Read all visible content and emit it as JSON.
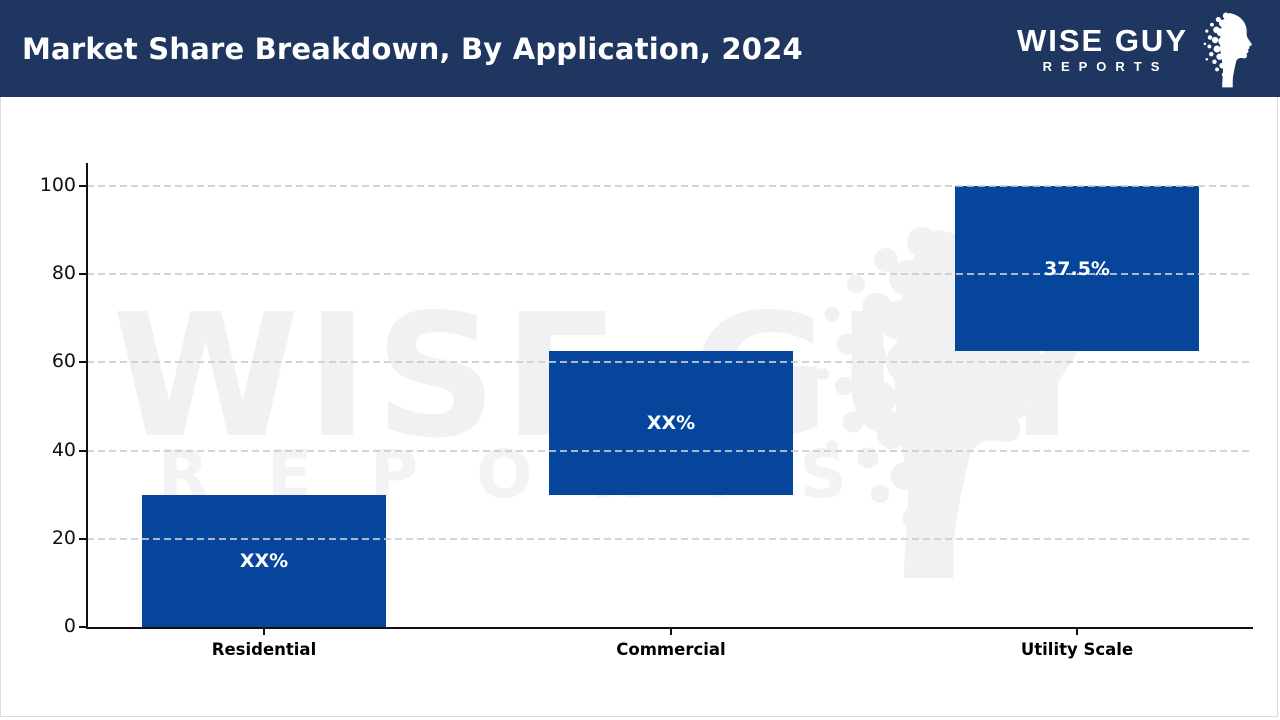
{
  "header": {
    "title": "Market Share Breakdown, By Application, 2024",
    "bg_color": "#1F3661",
    "text_color": "#FFFFFF",
    "logo": {
      "wordmark": "WISE GUY",
      "subtitle": "REPORTS",
      "icon": "wiseguy-head-icon"
    }
  },
  "watermark": {
    "wordmark": "WISE GUY",
    "subtitle": "REPORTS",
    "icon": "wiseguy-head-icon",
    "color": "#F1F1F3"
  },
  "chart_data": {
    "type": "bar",
    "variant": "floating-segment-waterfall",
    "title": "Market Share Breakdown, By Application, 2024",
    "categories": [
      "Residential",
      "Commercial",
      "Utility Scale"
    ],
    "bars": [
      {
        "category": "Residential",
        "from": 0,
        "to": 30,
        "size": 30,
        "label": "XX%"
      },
      {
        "category": "Commercial",
        "from": 30,
        "to": 62.5,
        "size": 32.5,
        "label": "XX%"
      },
      {
        "category": "Utility Scale",
        "from": 62.5,
        "to": 100,
        "size": 37.5,
        "label": "37.5%"
      }
    ],
    "yticks": [
      0,
      20,
      40,
      60,
      80,
      100
    ],
    "ylim": [
      0,
      105
    ],
    "xlabel": "",
    "ylabel": "",
    "grid": {
      "axis": "y",
      "style": "dashed",
      "drawn_above_bars": true
    },
    "legend": null,
    "colors": {
      "bar": "#05459C",
      "bar_label_text": "#FFFFFF",
      "gridline": "#D9D9D9",
      "axis_line": "#111111",
      "tick_text": "#111111",
      "category_text": "#000000",
      "plot_bg": "#FFFFFF",
      "frame_border": "#DCDCDC"
    }
  }
}
